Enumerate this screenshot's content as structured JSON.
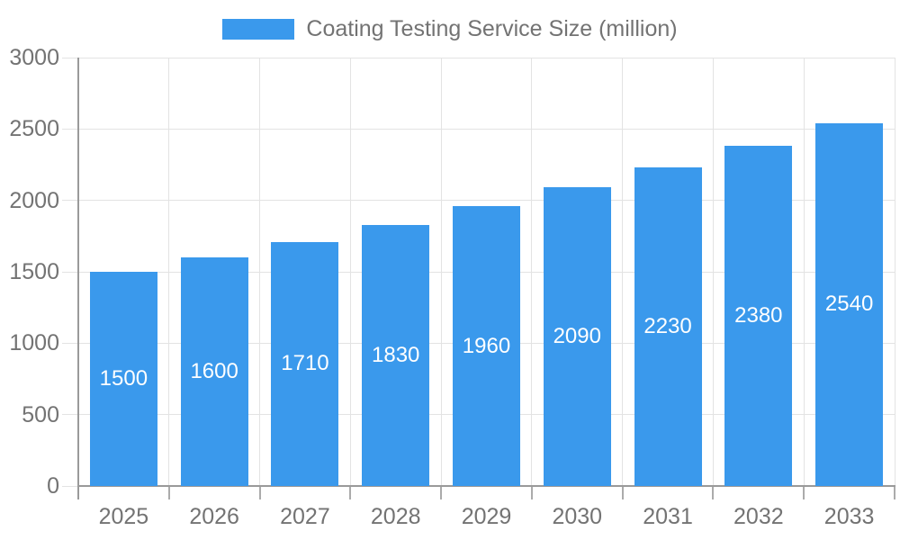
{
  "chart_data": {
    "type": "bar",
    "title": "Coating Testing Service Size (million)",
    "legend_position": "top",
    "categories": [
      "2025",
      "2026",
      "2027",
      "2028",
      "2029",
      "2030",
      "2031",
      "2032",
      "2033"
    ],
    "values": [
      1500,
      1600,
      1710,
      1830,
      1960,
      2090,
      2230,
      2380,
      2540
    ],
    "series": [
      {
        "name": "Coating Testing Service Size (million)",
        "values": [
          1500,
          1600,
          1710,
          1830,
          1960,
          2090,
          2230,
          2380,
          2540
        ]
      }
    ],
    "bar_value_labels": [
      "1500",
      "1600",
      "1710",
      "1830",
      "1960",
      "2090",
      "2230",
      "2380",
      "2540"
    ],
    "xlabel": "",
    "ylabel": "",
    "ylim": [
      0,
      3000
    ],
    "yticks": [
      0,
      500,
      1000,
      1500,
      2000,
      2500,
      3000
    ],
    "ytick_labels": [
      "0",
      "500",
      "1000",
      "1500",
      "2000",
      "2500",
      "3000"
    ],
    "grid": true,
    "colors": {
      "bar": "#3a99ec",
      "grid_line": "#e3e3e3",
      "axis_line": "#9a9a9a",
      "tick": "#ababab",
      "axis_text": "#737373",
      "bar_label_text": "#ffffff",
      "background": "#ffffff"
    }
  },
  "legend": {
    "label": "Coating Testing Service Size (million)"
  }
}
